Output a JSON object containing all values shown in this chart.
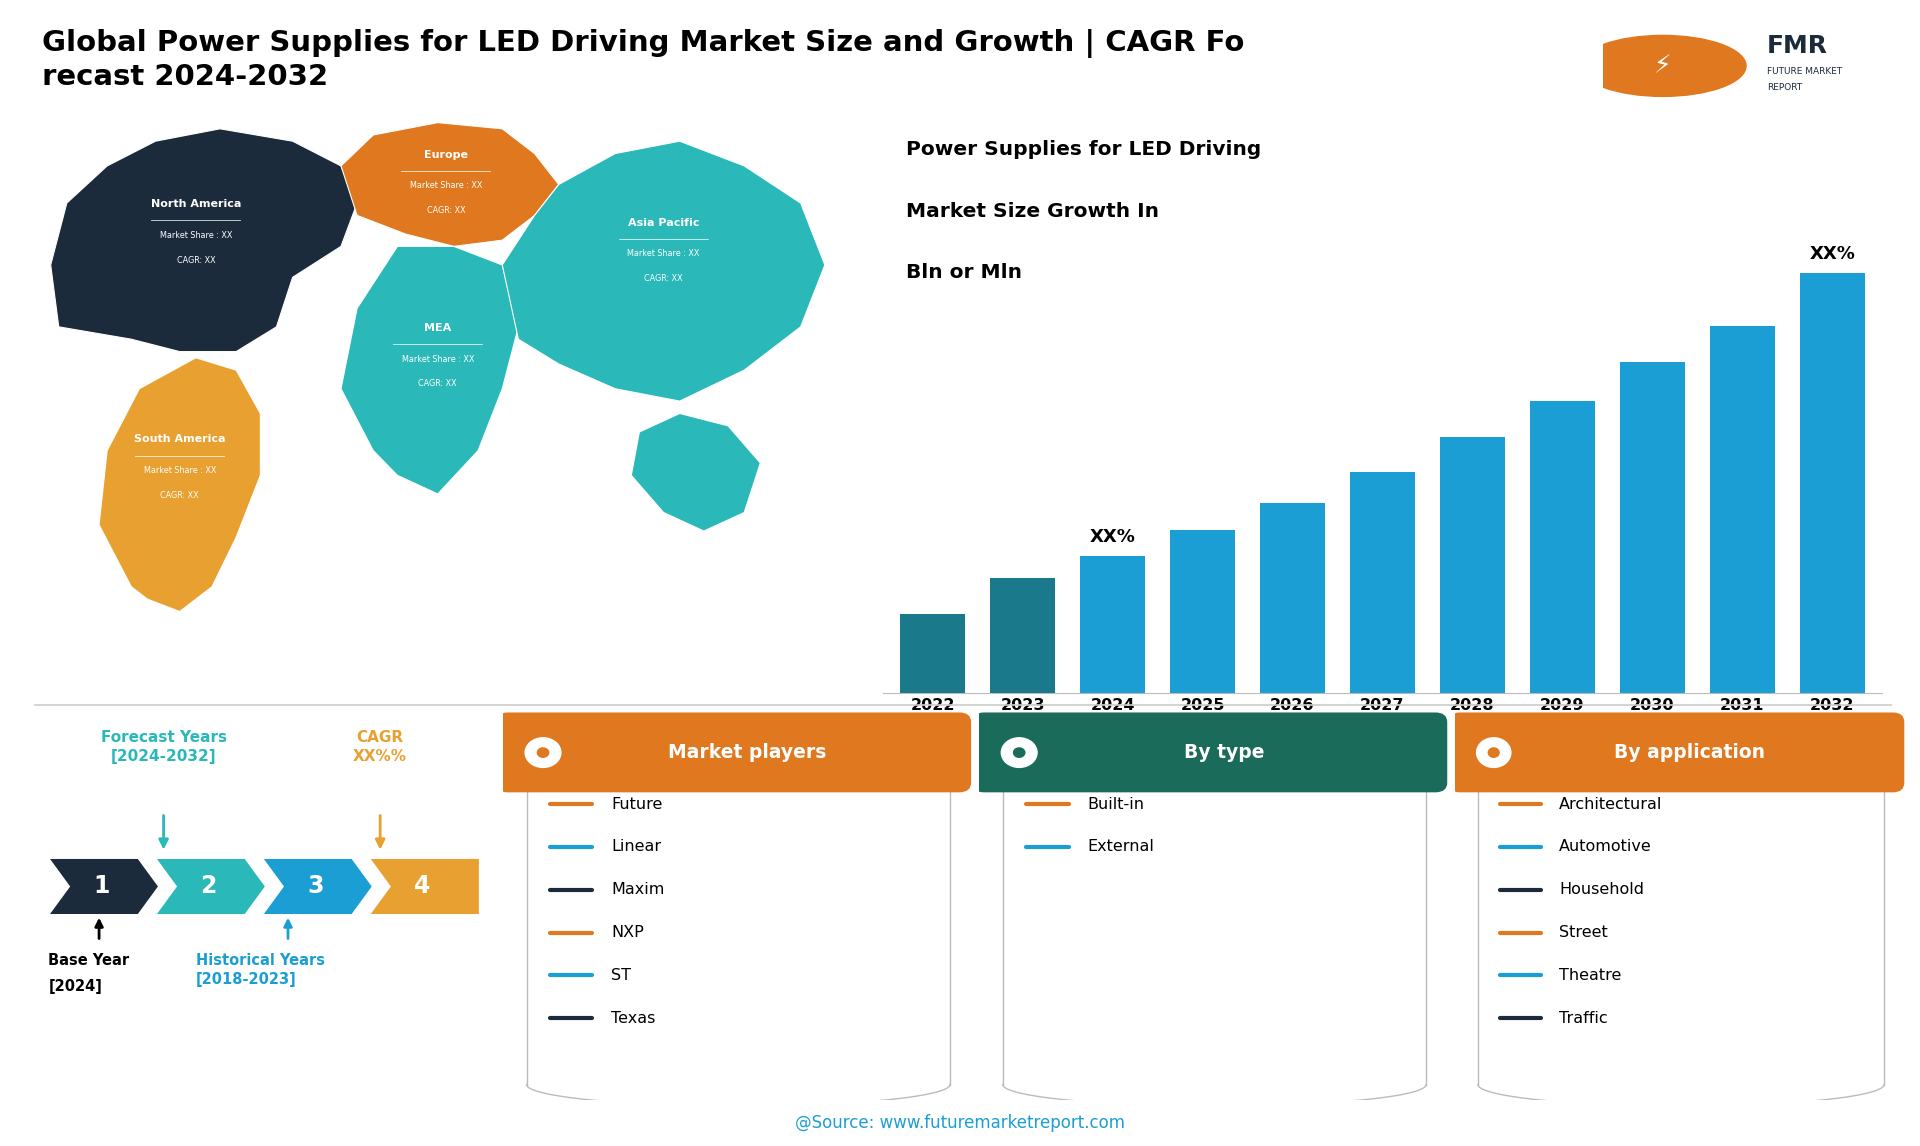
{
  "title_line1": "Global Power Supplies for LED Driving Market Size and Growth | CAGR Fo",
  "title_line2": "recast 2024-2032",
  "chart_title_line1": "Power Supplies for LED Driving",
  "chart_title_line2": "Market Size Growth In",
  "chart_title_line3": "Bln or Mln",
  "bar_years": [
    2022,
    2023,
    2024,
    2025,
    2026,
    2027,
    2028,
    2029,
    2030,
    2031,
    2032
  ],
  "bar_heights": [
    1.8,
    2.6,
    3.1,
    3.7,
    4.3,
    5.0,
    5.8,
    6.6,
    7.5,
    8.3,
    9.5
  ],
  "bar_color_dark": "#1a7a8c",
  "bar_color_light": "#1b9ed4",
  "bar_annot_idx": 2,
  "bar_annot_text": "XX%",
  "bar_annot_idx2": 10,
  "bar_annot_text2": "XX%",
  "forecast_label": "Forecast Years\n[2024-2032]",
  "forecast_color": "#2ab8b8",
  "cagr_text": "CAGR\nXX%%",
  "cagr_color": "#e8a030",
  "base_year_text1": "Base Year",
  "base_year_text2": "[2024]",
  "historical_text": "Historical Years\n[2018-2023]",
  "historical_color": "#1b9ed4",
  "steps": [
    {
      "num": "1",
      "color": "#1c2b3c"
    },
    {
      "num": "2",
      "color": "#2ab8b8"
    },
    {
      "num": "3",
      "color": "#1b9ed4"
    },
    {
      "num": "4",
      "color": "#e8a030"
    }
  ],
  "market_players_header": "Market players",
  "market_players_color": "#e07820",
  "market_players": [
    "Future",
    "Linear",
    "Maxim",
    "NXP",
    "ST",
    "Texas"
  ],
  "mp_bullet_colors": [
    "#e07820",
    "#1b9ed4",
    "#1c2b3c",
    "#e07820",
    "#1b9ed4",
    "#1c2b3c"
  ],
  "by_type_header": "By type",
  "by_type_color": "#1a6b5a",
  "by_type_items": [
    "Built-in",
    "External"
  ],
  "bt_bullet_colors": [
    "#e07820",
    "#1b9ed4"
  ],
  "by_application_header": "By application",
  "by_application_color": "#e07820",
  "by_application_items": [
    "Architectural",
    "Automotive",
    "Household",
    "Street",
    "Theatre",
    "Traffic"
  ],
  "ba_bullet_colors": [
    "#e07820",
    "#1b9ed4",
    "#1c2b3c",
    "#e07820",
    "#1b9ed4",
    "#1c2b3c"
  ],
  "source_text": "@Source: www.futuremarketreport.com",
  "source_color": "#1b9ed4",
  "bg": "#ffffff",
  "na_color": "#1c2b3c",
  "sa_color": "#e8a030",
  "eu_color": "#e07820",
  "mea_color": "#2ab8b8",
  "ap_color": "#2ab8b8",
  "aus_color": "#2ab8b8"
}
